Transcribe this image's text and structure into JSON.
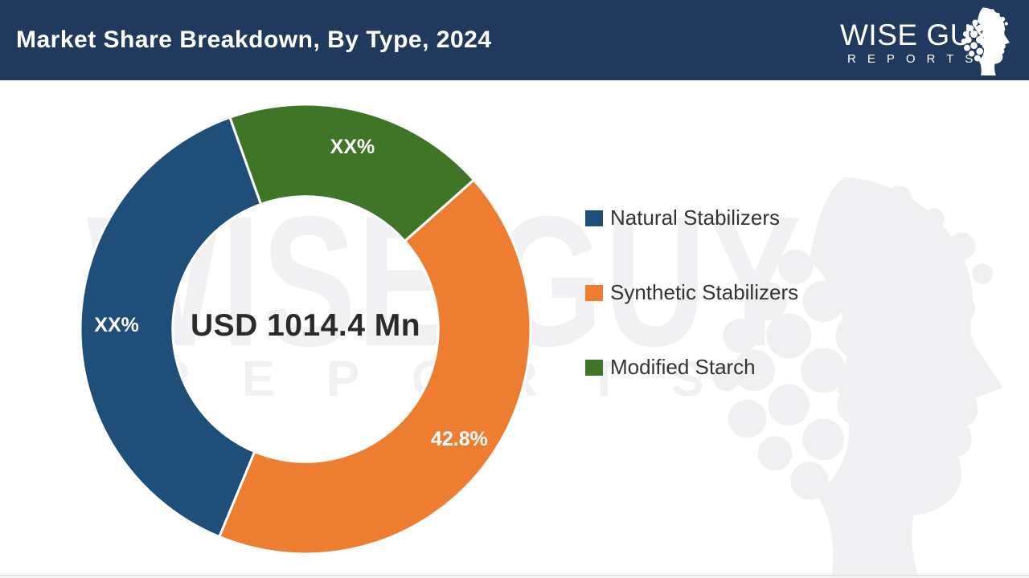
{
  "header": {
    "title": "Market Share Breakdown, By Type, 2024",
    "bg_color": "#22395E",
    "logo": {
      "line1": "WISE GUY",
      "line2": "REPORTS"
    }
  },
  "chart_data": {
    "type": "donut",
    "title": "Market Share Breakdown, By Type, 2024",
    "center_label": "USD 1014.4 Mn",
    "rotation_deg": 202.5,
    "inner_radius_ratio": 0.59,
    "separator_color": "#ffffff",
    "slices": [
      {
        "label": "Natural Stabilizers",
        "value_pct": 38.3,
        "display_label": "XX%",
        "color": "#1F4E79"
      },
      {
        "label": "Modified Starch",
        "value_pct": 18.9,
        "display_label": "XX%",
        "color": "#407427"
      },
      {
        "label": "Synthetic Stabilizers",
        "value_pct": 42.8,
        "display_label": "42.8%",
        "color": "#ED7D31"
      }
    ],
    "legend_position": "right"
  },
  "legend": {
    "items": [
      {
        "label": "Natural Stabilizers",
        "color": "#1F4E79"
      },
      {
        "label": "Synthetic Stabilizers",
        "color": "#ED7D31"
      },
      {
        "label": "Modified Starch",
        "color": "#407427"
      }
    ]
  },
  "watermark": {
    "line1": "WISE GUY",
    "line2": "REPORTS",
    "color": "#F1F1F4"
  }
}
